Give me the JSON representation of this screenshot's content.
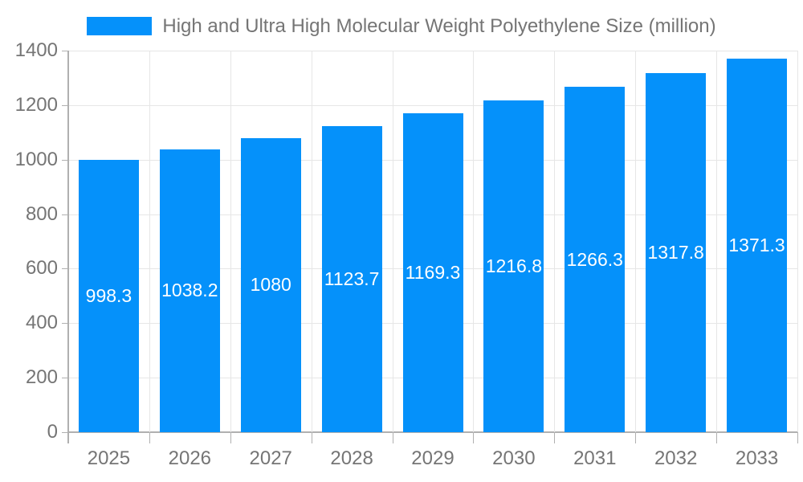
{
  "chart_data": {
    "type": "bar",
    "title": "High and Ultra High Molecular Weight Polyethylene Size (million)",
    "categories": [
      "2025",
      "2026",
      "2027",
      "2028",
      "2029",
      "2030",
      "2031",
      "2032",
      "2033"
    ],
    "values": [
      998.3,
      1038.2,
      1080,
      1123.7,
      1169.3,
      1216.8,
      1266.3,
      1317.8,
      1371.3
    ],
    "bar_labels": [
      "998.3",
      "1038.2",
      "1080",
      "1123.7",
      "1169.3",
      "1216.8",
      "1266.3",
      "1317.8",
      "1371.3"
    ],
    "series": [
      {
        "name": "High and Ultra High Molecular Weight Polyethylene Size (million)",
        "values": [
          998.3,
          1038.2,
          1080,
          1123.7,
          1169.3,
          1216.8,
          1266.3,
          1317.8,
          1371.3
        ]
      }
    ],
    "xlabel": "",
    "ylabel": "",
    "ylim": [
      0,
      1400
    ],
    "yticks": [
      0,
      200,
      400,
      600,
      800,
      1000,
      1200,
      1400
    ],
    "grid": true,
    "legend_position": "top",
    "colors": {
      "bar": "#0591fa",
      "grid": "#e6e6e6",
      "axis": "#b0b0b0",
      "tick_text": "#757575",
      "legend_text": "#757575",
      "bar_label_text": "#ffffff"
    }
  }
}
